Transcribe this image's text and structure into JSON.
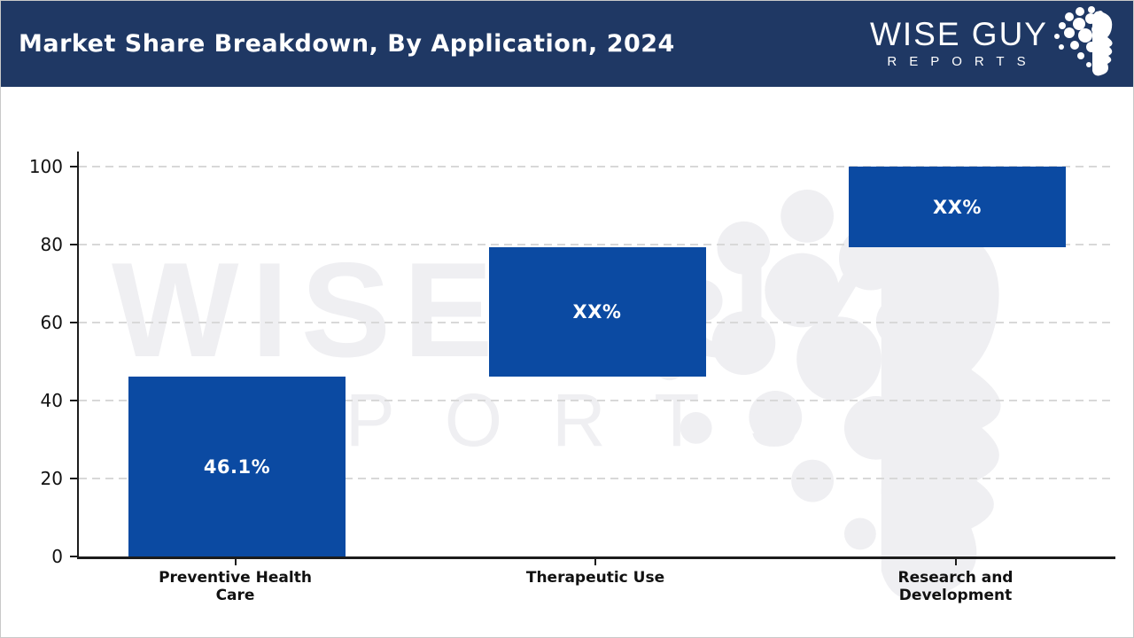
{
  "header": {
    "title": "Market Share Breakdown, By Application, 2024",
    "background_color": "#1f3864"
  },
  "logo": {
    "line1": "WISE GUY",
    "line2": "REPORTS"
  },
  "watermark": {
    "line1": "WISE GUY",
    "line2": "REPORTS"
  },
  "chart_data": {
    "type": "bar",
    "subtype": "waterfall-stacked",
    "title": "Market Share Breakdown, By Application, 2024",
    "xlabel": "",
    "ylabel": "",
    "ylim": [
      0,
      100
    ],
    "y_ticks": [
      0,
      20,
      40,
      60,
      80,
      100
    ],
    "grid": "horizontal dashed",
    "legend": "none",
    "bar_color": "#0b4aa2",
    "grid_color": "#d8d8d8",
    "categories": [
      "Preventive Health Care",
      "Therapeutic Use",
      "Research and Development"
    ],
    "segments": [
      {
        "category": "Preventive Health Care",
        "start": 0,
        "end": 46.1,
        "label": "46.1%"
      },
      {
        "category": "Therapeutic Use",
        "start": 46.1,
        "end": 79.3,
        "label": "XX%"
      },
      {
        "category": "Research and Development",
        "start": 79.3,
        "end": 100,
        "label": "XX%"
      }
    ]
  }
}
